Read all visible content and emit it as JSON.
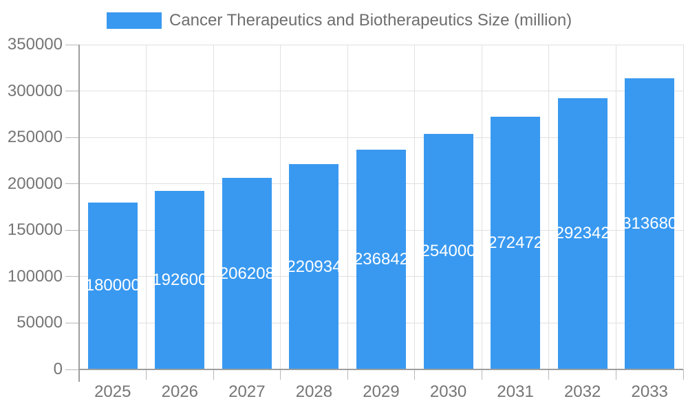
{
  "chart_data": {
    "type": "bar",
    "title": "",
    "legend": "Cancer Therapeutics and Biotherapeutics Size (million)",
    "legend_position": "top",
    "grid": true,
    "categories": [
      "2025",
      "2026",
      "2027",
      "2028",
      "2029",
      "2030",
      "2031",
      "2032",
      "2033"
    ],
    "series": [
      {
        "name": "Cancer Therapeutics and Biotherapeutics Size (million)",
        "values": [
          180000,
          192600,
          206208,
          220934,
          236842,
          254000,
          272472,
          292342,
          313680
        ]
      }
    ],
    "value_labels": [
      "180000",
      "192600",
      "206208",
      "220934",
      "236842",
      "254000",
      "272472",
      "292342",
      "313680"
    ],
    "xlabel": "",
    "ylabel": "",
    "ylim": [
      0,
      350000
    ],
    "ytick_step": 50000,
    "yticks": [
      0,
      50000,
      100000,
      150000,
      200000,
      250000,
      300000,
      350000
    ],
    "colors": {
      "bar": "#3999F0",
      "grid": "#e0e0e0",
      "outer_tick": "#b7b7b7",
      "axis": "#9e9e9e",
      "axis_text": "#757575",
      "legend_text": "#6e6e6e",
      "value_label": "#ffffff",
      "background": "#ffffff"
    }
  }
}
